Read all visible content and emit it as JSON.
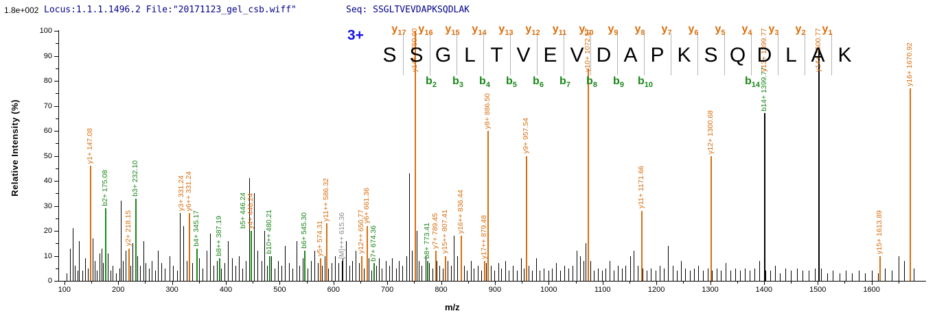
{
  "header": {
    "max_intensity_label": "1.8e+002",
    "locus_text": "Locus:1.1.1.1496.2 File:\"20171123_gel_csb.wiff\"",
    "seq_text": "Seq: SSGLTVEVDAPKSQDLAK"
  },
  "colors": {
    "y_ion": "#D96D0C",
    "b_ion": "#178717",
    "black": "#000000",
    "gray": "#8a8a8a",
    "navy": "#00008B",
    "blue": "#1414E6",
    "gap_line": "#b3b3b3"
  },
  "ladder": {
    "charge_label": "3+",
    "sequence": "SSGLTVEVDAPKSQDLAK",
    "residues": [
      "S",
      "S",
      "G",
      "L",
      "T",
      "V",
      "E",
      "V",
      "D",
      "A",
      "P",
      "K",
      "S",
      "Q",
      "D",
      "L",
      "A",
      "K"
    ],
    "y_ions": [
      {
        "gap": 1,
        "n": "17"
      },
      {
        "gap": 2,
        "n": "16"
      },
      {
        "gap": 3,
        "n": "15"
      },
      {
        "gap": 4,
        "n": "14"
      },
      {
        "gap": 5,
        "n": "13"
      },
      {
        "gap": 6,
        "n": "12"
      },
      {
        "gap": 7,
        "n": "11"
      },
      {
        "gap": 8,
        "n": "10"
      },
      {
        "gap": 9,
        "n": "9"
      },
      {
        "gap": 10,
        "n": "8"
      },
      {
        "gap": 11,
        "n": "7"
      },
      {
        "gap": 12,
        "n": "6"
      },
      {
        "gap": 13,
        "n": "5"
      },
      {
        "gap": 14,
        "n": "4"
      },
      {
        "gap": 15,
        "n": "3"
      },
      {
        "gap": 16,
        "n": "2"
      },
      {
        "gap": 17,
        "n": "1"
      }
    ],
    "b_ions": [
      {
        "gap": 2,
        "n": "2"
      },
      {
        "gap": 3,
        "n": "3"
      },
      {
        "gap": 4,
        "n": "4"
      },
      {
        "gap": 5,
        "n": "5"
      },
      {
        "gap": 6,
        "n": "6"
      },
      {
        "gap": 7,
        "n": "7"
      },
      {
        "gap": 8,
        "n": "8"
      },
      {
        "gap": 9,
        "n": "9"
      },
      {
        "gap": 10,
        "n": "10"
      },
      {
        "gap": 14,
        "n": "14"
      }
    ]
  },
  "chart_data": {
    "type": "bar",
    "subtype": "ms2-peptide-fragmentation-spectrum",
    "title": "",
    "xlabel": "m/z",
    "ylabel": "Relative  Intensity (%)",
    "xlim": [
      90,
      1700
    ],
    "ylim": [
      0,
      100
    ],
    "x_ticks": [
      100,
      200,
      300,
      400,
      500,
      600,
      700,
      800,
      900,
      1000,
      1100,
      1200,
      1300,
      1400,
      1500,
      1600
    ],
    "y_ticks": [
      0,
      10,
      20,
      30,
      40,
      50,
      60,
      70,
      80,
      90,
      100
    ],
    "legend": null,
    "grid": false,
    "annotated_peaks": [
      {
        "mz": 147.08,
        "intensity": 46,
        "color": "y_ion",
        "ion": "y1+",
        "labels": [
          {
            "text": "y1+ 147.08",
            "color": "y_ion"
          }
        ]
      },
      {
        "mz": 175.08,
        "intensity": 29,
        "color": "b_ion",
        "ion": "b2+",
        "labels": [
          {
            "text": "b2+ 175.08",
            "color": "b_ion"
          }
        ]
      },
      {
        "mz": 218.15,
        "intensity": 13,
        "color": "y_ion",
        "ion": "y2+",
        "labels": [
          {
            "text": "y2+ 218.15",
            "color": "y_ion"
          }
        ]
      },
      {
        "mz": 232.1,
        "intensity": 33,
        "color": "b_ion",
        "ion": "b3+",
        "labels": [
          {
            "text": "b3+ 232.10",
            "color": "b_ion"
          }
        ]
      },
      {
        "mz": 331.24,
        "intensity": 27,
        "color": "y_ion",
        "ion": "y3+/y6++",
        "labels": [
          {
            "text": "y3+ 331.24",
            "color": "y_ion",
            "dx": -11
          },
          {
            "text": "y6++ 331.24",
            "color": "y_ion"
          }
        ]
      },
      {
        "mz": 345.17,
        "intensity": 13,
        "color": "b_ion",
        "ion": "b4+",
        "labels": [
          {
            "text": "b4+ 345.17",
            "color": "b_ion"
          }
        ]
      },
      {
        "mz": 387.19,
        "intensity": 9,
        "color": "b_ion",
        "ion": "b8++",
        "labels": [
          {
            "text": "b8++ 387.19",
            "color": "b_ion"
          }
        ]
      },
      {
        "mz": 446.24,
        "intensity": 20,
        "color": "b_ion",
        "ion": "b5+/y4+",
        "labels": [
          {
            "text": "b5+ 446.24",
            "color": "b_ion",
            "dx": -11
          },
          {
            "text": "y4+ 446.24",
            "color": "y_ion"
          }
        ]
      },
      {
        "mz": 480.21,
        "intensity": 10,
        "color": "b_ion",
        "ion": "b10++",
        "labels": [
          {
            "text": "b10++ 480.21",
            "color": "b_ion"
          }
        ]
      },
      {
        "mz": 545.3,
        "intensity": 12,
        "color": "b_ion",
        "ion": "b6+",
        "labels": [
          {
            "text": "b6+ 545.30",
            "color": "b_ion"
          }
        ]
      },
      {
        "mz": 574.31,
        "intensity": 9,
        "color": "y_ion",
        "ion": "y5+",
        "labels": [
          {
            "text": "y5+ 574.31",
            "color": "y_ion"
          }
        ]
      },
      {
        "mz": 586.32,
        "intensity": 23,
        "color": "y_ion",
        "ion": "y11++",
        "labels": [
          {
            "text": "y11++ 586.32",
            "color": "y_ion"
          }
        ]
      },
      {
        "mz": 615.36,
        "intensity": 8,
        "color": "black",
        "ion": "[M]+++",
        "labels": [
          {
            "text": "[M]+++ 615.36",
            "color": "gray"
          }
        ]
      },
      {
        "mz": 650.77,
        "intensity": 10,
        "color": "y_ion",
        "ion": "y12++",
        "labels": [
          {
            "text": "y12++ 650.77",
            "color": "y_ion"
          }
        ]
      },
      {
        "mz": 661.36,
        "intensity": 22,
        "color": "y_ion",
        "ion": "y6+",
        "labels": [
          {
            "text": "y6+ 661.36",
            "color": "y_ion"
          }
        ]
      },
      {
        "mz": 674.36,
        "intensity": 7,
        "color": "b_ion",
        "ion": "b7+",
        "labels": [
          {
            "text": "b7+ 674.36",
            "color": "b_ion"
          }
        ]
      },
      {
        "mz": 750.9,
        "intensity": 100,
        "color": "y_ion",
        "ion": "y14++",
        "labels": [
          {
            "text": "y14++ 750.90",
            "color": "y_ion"
          }
        ]
      },
      {
        "mz": 773.41,
        "intensity": 8,
        "color": "b_ion",
        "ion": "b8+",
        "labels": [
          {
            "text": "b8+ 773.41",
            "color": "b_ion"
          }
        ]
      },
      {
        "mz": 789.45,
        "intensity": 12,
        "color": "y_ion",
        "ion": "y7+",
        "labels": [
          {
            "text": "y7+ 789.45",
            "color": "y_ion"
          }
        ]
      },
      {
        "mz": 807.41,
        "intensity": 10,
        "color": "y_ion",
        "ion": "y15++",
        "labels": [
          {
            "text": "y15++ 807.41",
            "color": "y_ion"
          }
        ]
      },
      {
        "mz": 836.44,
        "intensity": 18,
        "color": "y_ion",
        "ion": "y16++",
        "labels": [
          {
            "text": "y16++ 836.44",
            "color": "y_ion"
          }
        ]
      },
      {
        "mz": 879.48,
        "intensity": 8,
        "color": "y_ion",
        "ion": "y17++",
        "labels": [
          {
            "text": "y17++ 879.48",
            "color": "y_ion"
          }
        ]
      },
      {
        "mz": 886.5,
        "intensity": 60,
        "color": "y_ion",
        "ion": "y8+",
        "labels": [
          {
            "text": "y8+ 886.50",
            "color": "y_ion"
          }
        ]
      },
      {
        "mz": 957.54,
        "intensity": 50,
        "color": "y_ion",
        "ion": "y9+",
        "labels": [
          {
            "text": "y9+ 957.54",
            "color": "y_ion"
          }
        ]
      },
      {
        "mz": 1072.57,
        "intensity": 85,
        "color": "y_ion",
        "ion": "y10+",
        "labels": [
          {
            "text": "y10+ 1072.57",
            "color": "y_ion"
          }
        ]
      },
      {
        "mz": 1171.66,
        "intensity": 28,
        "color": "y_ion",
        "ion": "y11+",
        "labels": [
          {
            "text": "y11+ 1171.66",
            "color": "y_ion"
          }
        ]
      },
      {
        "mz": 1300.68,
        "intensity": 50,
        "color": "y_ion",
        "ion": "y12+",
        "labels": [
          {
            "text": "y12+ 1300.68",
            "color": "y_ion"
          }
        ]
      },
      {
        "mz": 1399.77,
        "intensity": 67,
        "color": "black",
        "ion": "b14+/y13+",
        "labels": [
          {
            "text": "b14+ 1399.77",
            "color": "b_ion"
          },
          {
            "text": "y13+ 1399.77",
            "color": "y_ion",
            "dy": 68
          }
        ]
      },
      {
        "mz": 1500.77,
        "intensity": 93,
        "color": "black",
        "ion": "y14+",
        "labels": [
          {
            "text": "y14+ 1500.77",
            "color": "y_ion"
          }
        ]
      },
      {
        "mz": 1613.89,
        "intensity": 10,
        "color": "y_ion",
        "ion": "y15+",
        "labels": [
          {
            "text": "y15+ 1613.89",
            "color": "y_ion"
          }
        ]
      },
      {
        "mz": 1670.92,
        "intensity": 77,
        "color": "y_ion",
        "ion": "y16+",
        "labels": [
          {
            "text": "y16+ 1670.92",
            "color": "y_ion"
          }
        ]
      }
    ],
    "background_peaks": [
      [
        104,
        3
      ],
      [
        110,
        13
      ],
      [
        115,
        21
      ],
      [
        119,
        6
      ],
      [
        124,
        4
      ],
      [
        127,
        16
      ],
      [
        133,
        4
      ],
      [
        138,
        9
      ],
      [
        143,
        5
      ],
      [
        152,
        17
      ],
      [
        156,
        8
      ],
      [
        160,
        4
      ],
      [
        165,
        11
      ],
      [
        169,
        13
      ],
      [
        172,
        7
      ],
      [
        181,
        11
      ],
      [
        186,
        4
      ],
      [
        190,
        6
      ],
      [
        196,
        3
      ],
      [
        202,
        5
      ],
      [
        205,
        32
      ],
      [
        209,
        8
      ],
      [
        214,
        12
      ],
      [
        222,
        6
      ],
      [
        227,
        15
      ],
      [
        236,
        10
      ],
      [
        240,
        6
      ],
      [
        247,
        16
      ],
      [
        251,
        7
      ],
      [
        257,
        5
      ],
      [
        262,
        8
      ],
      [
        268,
        4
      ],
      [
        274,
        12
      ],
      [
        280,
        7
      ],
      [
        287,
        5
      ],
      [
        295,
        10
      ],
      [
        302,
        6
      ],
      [
        309,
        4
      ],
      [
        315,
        27
      ],
      [
        321,
        22
      ],
      [
        327,
        8
      ],
      [
        338,
        7
      ],
      [
        350,
        9
      ],
      [
        357,
        5
      ],
      [
        364,
        12
      ],
      [
        371,
        19
      ],
      [
        377,
        6
      ],
      [
        383,
        8
      ],
      [
        391,
        5
      ],
      [
        398,
        7
      ],
      [
        404,
        16
      ],
      [
        411,
        9
      ],
      [
        418,
        6
      ],
      [
        424,
        10
      ],
      [
        430,
        5
      ],
      [
        437,
        8
      ],
      [
        443,
        41
      ],
      [
        452,
        35
      ],
      [
        459,
        12
      ],
      [
        466,
        8
      ],
      [
        471,
        20
      ],
      [
        476,
        6
      ],
      [
        484,
        10
      ],
      [
        490,
        5
      ],
      [
        497,
        8
      ],
      [
        503,
        6
      ],
      [
        510,
        14
      ],
      [
        517,
        7
      ],
      [
        524,
        5
      ],
      [
        531,
        16
      ],
      [
        537,
        6
      ],
      [
        543,
        9
      ],
      [
        552,
        5
      ],
      [
        558,
        8
      ],
      [
        565,
        12
      ],
      [
        571,
        7
      ],
      [
        578,
        6
      ],
      [
        584,
        10
      ],
      [
        590,
        5
      ],
      [
        597,
        7
      ],
      [
        603,
        10
      ],
      [
        609,
        7
      ],
      [
        617,
        9
      ],
      [
        623,
        16
      ],
      [
        629,
        6
      ],
      [
        635,
        8
      ],
      [
        641,
        12
      ],
      [
        648,
        7
      ],
      [
        656,
        5
      ],
      [
        665,
        9
      ],
      [
        671,
        4
      ],
      [
        679,
        6
      ],
      [
        684,
        9
      ],
      [
        690,
        5
      ],
      [
        697,
        8
      ],
      [
        703,
        6
      ],
      [
        709,
        9
      ],
      [
        716,
        5
      ],
      [
        722,
        8
      ],
      [
        728,
        6
      ],
      [
        735,
        10
      ],
      [
        741,
        43
      ],
      [
        746,
        12
      ],
      [
        755,
        20
      ],
      [
        759,
        8
      ],
      [
        764,
        6
      ],
      [
        771,
        10
      ],
      [
        778,
        7
      ],
      [
        784,
        5
      ],
      [
        791,
        8
      ],
      [
        797,
        6
      ],
      [
        803,
        5
      ],
      [
        812,
        8
      ],
      [
        818,
        6
      ],
      [
        824,
        18
      ],
      [
        830,
        10
      ],
      [
        842,
        6
      ],
      [
        848,
        4
      ],
      [
        855,
        8
      ],
      [
        861,
        5
      ],
      [
        868,
        6
      ],
      [
        874,
        4
      ],
      [
        883,
        7
      ],
      [
        892,
        6
      ],
      [
        899,
        4
      ],
      [
        906,
        7
      ],
      [
        912,
        5
      ],
      [
        919,
        8
      ],
      [
        926,
        4
      ],
      [
        933,
        6
      ],
      [
        941,
        4
      ],
      [
        948,
        9
      ],
      [
        954,
        5
      ],
      [
        962,
        6
      ],
      [
        969,
        4
      ],
      [
        976,
        9
      ],
      [
        983,
        4
      ],
      [
        991,
        5
      ],
      [
        999,
        4
      ],
      [
        1006,
        5
      ],
      [
        1013,
        7
      ],
      [
        1021,
        4
      ],
      [
        1029,
        6
      ],
      [
        1037,
        5
      ],
      [
        1044,
        6
      ],
      [
        1052,
        12
      ],
      [
        1058,
        10
      ],
      [
        1064,
        8
      ],
      [
        1069,
        15
      ],
      [
        1077,
        8
      ],
      [
        1084,
        4
      ],
      [
        1091,
        5
      ],
      [
        1099,
        4
      ],
      [
        1106,
        5
      ],
      [
        1113,
        8
      ],
      [
        1121,
        4
      ],
      [
        1128,
        6
      ],
      [
        1136,
        5
      ],
      [
        1143,
        6
      ],
      [
        1151,
        10
      ],
      [
        1158,
        12
      ],
      [
        1166,
        6
      ],
      [
        1174,
        5
      ],
      [
        1182,
        4
      ],
      [
        1190,
        5
      ],
      [
        1198,
        4
      ],
      [
        1206,
        6
      ],
      [
        1214,
        5
      ],
      [
        1222,
        14
      ],
      [
        1230,
        6
      ],
      [
        1238,
        4
      ],
      [
        1246,
        8
      ],
      [
        1254,
        5
      ],
      [
        1262,
        4
      ],
      [
        1270,
        5
      ],
      [
        1278,
        6
      ],
      [
        1286,
        4
      ],
      [
        1295,
        5
      ],
      [
        1303,
        4
      ],
      [
        1312,
        5
      ],
      [
        1320,
        4
      ],
      [
        1329,
        7
      ],
      [
        1337,
        4
      ],
      [
        1346,
        5
      ],
      [
        1355,
        4
      ],
      [
        1364,
        5
      ],
      [
        1373,
        4
      ],
      [
        1382,
        5
      ],
      [
        1391,
        8
      ],
      [
        1403,
        4
      ],
      [
        1412,
        4
      ],
      [
        1421,
        6
      ],
      [
        1430,
        3
      ],
      [
        1440,
        5
      ],
      [
        1450,
        4
      ],
      [
        1461,
        5
      ],
      [
        1472,
        4
      ],
      [
        1483,
        4
      ],
      [
        1494,
        5
      ],
      [
        1506,
        5
      ],
      [
        1517,
        3
      ],
      [
        1528,
        4
      ],
      [
        1540,
        3
      ],
      [
        1552,
        4
      ],
      [
        1564,
        3
      ],
      [
        1576,
        4
      ],
      [
        1588,
        3
      ],
      [
        1600,
        4
      ],
      [
        1612,
        3
      ],
      [
        1625,
        5
      ],
      [
        1638,
        4
      ],
      [
        1650,
        10
      ],
      [
        1660,
        8
      ],
      [
        1678,
        5
      ]
    ]
  }
}
